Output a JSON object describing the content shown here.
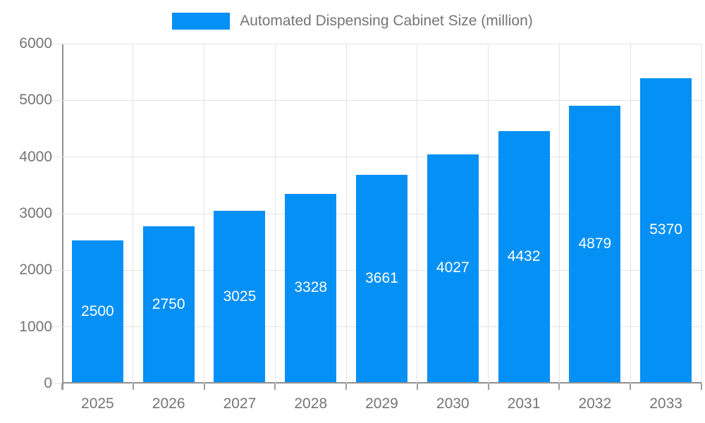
{
  "chart_data": {
    "type": "bar",
    "title": "Automated Dispensing Cabinet Size (million)",
    "legend": "Automated Dispensing Cabinet Size (million)",
    "legend_position": "top-center",
    "categories": [
      "2025",
      "2026",
      "2027",
      "2028",
      "2029",
      "2030",
      "2031",
      "2032",
      "2033"
    ],
    "series": [
      {
        "name": "Automated Dispensing Cabinet Size (million)",
        "values": [
          2500,
          2750,
          3025,
          3328,
          3661,
          4027,
          4432,
          4879,
          5370
        ]
      }
    ],
    "xlabel": "",
    "ylabel": "",
    "ylim": [
      0,
      6000
    ],
    "yticks": [
      0,
      1000,
      2000,
      3000,
      4000,
      5000,
      6000
    ],
    "grid": true,
    "bar_labels_inside": true,
    "colors": {
      "bar": "#0590f5",
      "bar_label_text": "#ffffff",
      "axis_line": "#8f8f8f",
      "grid_line": "#e3e3e3",
      "axis_text": "#757575"
    }
  }
}
